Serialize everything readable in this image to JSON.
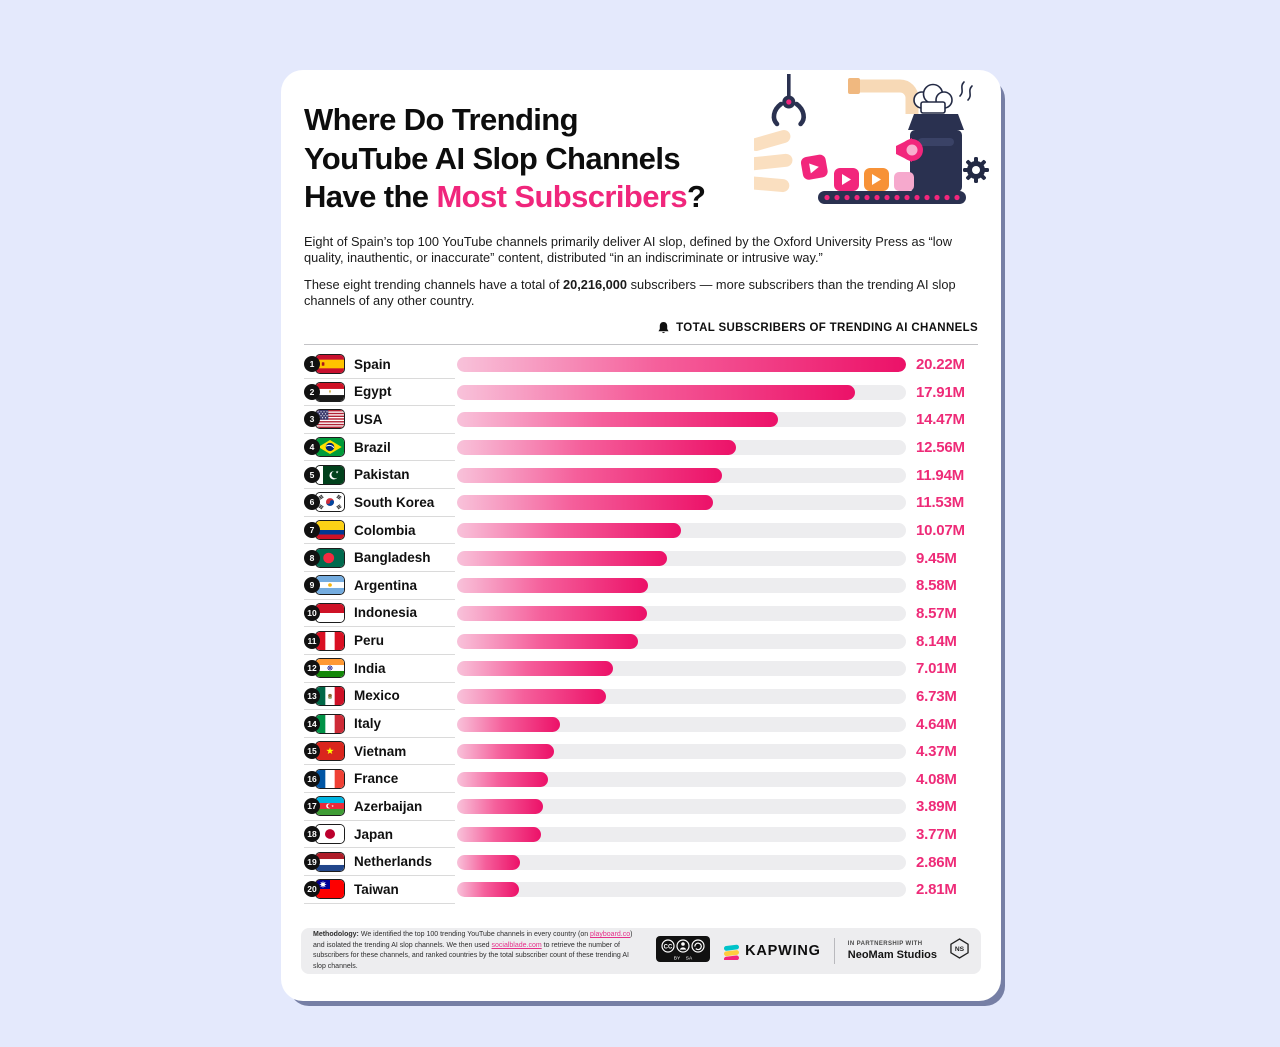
{
  "page": {
    "background_color": "#e4e9fc",
    "accent_color": "#f0267c"
  },
  "header": {
    "title_lines": [
      "Where Do Trending",
      "YouTube AI Slop Channels"
    ],
    "title_line3": {
      "prefix": "Have the ",
      "highlight": "Most Subscribers",
      "suffix": "?"
    }
  },
  "intro": {
    "p1": "Eight of Spain’s top 100 YouTube channels primarily deliver AI slop, defined by the Oxford University Press as “low quality, inauthentic, or inaccurate” content, distributed “in an indiscriminate or intrusive way.”",
    "p2_prefix": "These eight trending channels have a total of ",
    "p2_bold": "20,216,000",
    "p2_suffix": " subscribers — more subscribers than the trending AI slop channels of any other country."
  },
  "legend": {
    "icon": "bell-icon",
    "label": "TOTAL SUBSCRIBERS OF TRENDING AI CHANNELS"
  },
  "chart_data": {
    "type": "bar",
    "orientation": "horizontal",
    "title": "Total subscribers of trending AI channels",
    "unit": "millions of subscribers",
    "value_axis_range": [
      0,
      20.22
    ],
    "max_value": 20.22,
    "bar_gradient": [
      "#f8c2da",
      "#ec1168"
    ],
    "track_color": "#ededef",
    "rows": [
      {
        "rank": 1,
        "country": "Spain",
        "flag": "spain",
        "value": 20.22,
        "label": "20.22M"
      },
      {
        "rank": 2,
        "country": "Egypt",
        "flag": "egypt",
        "value": 17.91,
        "label": "17.91M"
      },
      {
        "rank": 3,
        "country": "USA",
        "flag": "usa",
        "value": 14.47,
        "label": "14.47M"
      },
      {
        "rank": 4,
        "country": "Brazil",
        "flag": "brazil",
        "value": 12.56,
        "label": "12.56M"
      },
      {
        "rank": 5,
        "country": "Pakistan",
        "flag": "pakistan",
        "value": 11.94,
        "label": "11.94M"
      },
      {
        "rank": 6,
        "country": "South Korea",
        "flag": "south_korea",
        "value": 11.53,
        "label": "11.53M"
      },
      {
        "rank": 7,
        "country": "Colombia",
        "flag": "colombia",
        "value": 10.07,
        "label": "10.07M"
      },
      {
        "rank": 8,
        "country": "Bangladesh",
        "flag": "bangladesh",
        "value": 9.45,
        "label": "9.45M"
      },
      {
        "rank": 9,
        "country": "Argentina",
        "flag": "argentina",
        "value": 8.58,
        "label": "8.58M"
      },
      {
        "rank": 10,
        "country": "Indonesia",
        "flag": "indonesia",
        "value": 8.57,
        "label": "8.57M"
      },
      {
        "rank": 11,
        "country": "Peru",
        "flag": "peru",
        "value": 8.14,
        "label": "8.14M"
      },
      {
        "rank": 12,
        "country": "India",
        "flag": "india",
        "value": 7.01,
        "label": "7.01M"
      },
      {
        "rank": 13,
        "country": "Mexico",
        "flag": "mexico",
        "value": 6.73,
        "label": "6.73M"
      },
      {
        "rank": 14,
        "country": "Italy",
        "flag": "italy",
        "value": 4.64,
        "label": "4.64M"
      },
      {
        "rank": 15,
        "country": "Vietnam",
        "flag": "vietnam",
        "value": 4.37,
        "label": "4.37M"
      },
      {
        "rank": 16,
        "country": "France",
        "flag": "france",
        "value": 4.08,
        "label": "4.08M"
      },
      {
        "rank": 17,
        "country": "Azerbaijan",
        "flag": "azerbaijan",
        "value": 3.89,
        "label": "3.89M"
      },
      {
        "rank": 18,
        "country": "Japan",
        "flag": "japan",
        "value": 3.77,
        "label": "3.77M"
      },
      {
        "rank": 19,
        "country": "Netherlands",
        "flag": "netherlands",
        "value": 2.86,
        "label": "2.86M"
      },
      {
        "rank": 20,
        "country": "Taiwan",
        "flag": "taiwan",
        "value": 2.81,
        "label": "2.81M"
      }
    ]
  },
  "footer": {
    "methodology_bold": "Methodology:",
    "methodology_parts": {
      "t1": " We identified the top 100 trending YouTube channels in every country (on ",
      "link1": "playboard.co",
      "t2": ") and isolated the trending AI slop channels. We then used ",
      "link2": "socialblade.com",
      "t3": " to retrieve the number of subscribers for these channels, and ranked countries by the total subscriber count of these trending AI slop channels."
    },
    "license": "CC BY SA",
    "kapwing_label": "KAPWING",
    "partnership_label": "IN PARTNERSHIP WITH",
    "partner_name": "NeoMam Studios"
  }
}
